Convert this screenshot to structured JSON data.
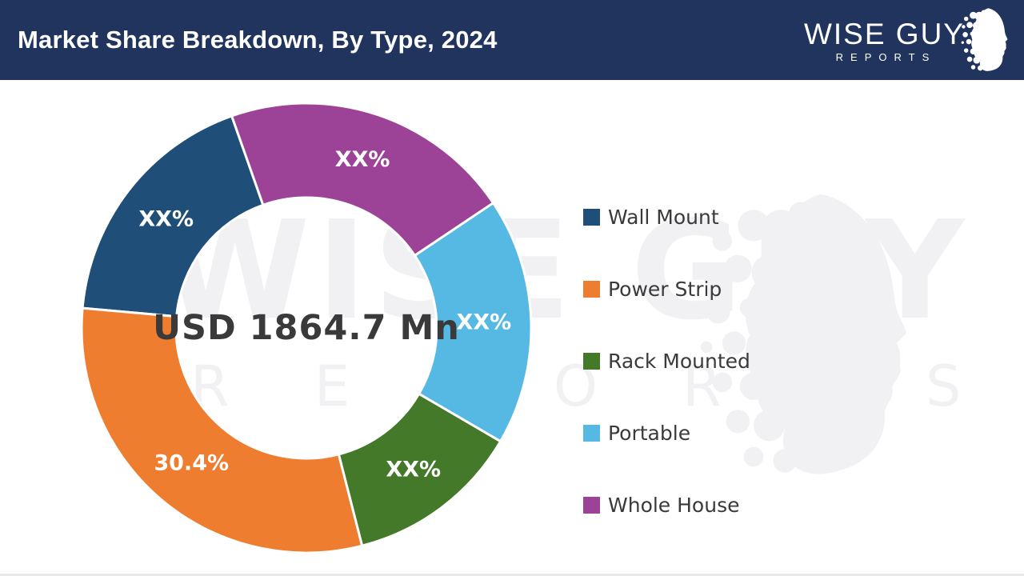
{
  "header": {
    "title": "Market Share Breakdown, By Type, 2024",
    "logo": {
      "name": "WISE GUY",
      "sub": "REPORTS"
    }
  },
  "watermark": {
    "line1": "WISE GUY",
    "line2": "R E P O R T S"
  },
  "chart_data": {
    "type": "donut",
    "title": "Market Share Breakdown, By Type, 2024",
    "center_label": "USD 1864.7 Mn",
    "unit": "USD Mn",
    "total_value_usd_mn": 1864.7,
    "start_angle_cw_deg": 340.6,
    "direction": "counterclockwise",
    "hole_ratio": 0.58,
    "legend_position": "right",
    "grid": false,
    "segments": [
      {
        "label": "Wall Mount",
        "display": "XX%",
        "value_pct_est": 18.2,
        "color": "#1f4e78"
      },
      {
        "label": "Power Strip",
        "display": "30.4%",
        "value_pct_est": 30.4,
        "color": "#ee7d30"
      },
      {
        "label": "Rack Mounted",
        "display": "XX%",
        "value_pct_est": 12.6,
        "color": "#44792a"
      },
      {
        "label": "Portable",
        "display": "XX%",
        "value_pct_est": 17.8,
        "color": "#55b9e4"
      },
      {
        "label": "Whole House",
        "display": "XX%",
        "value_pct_est": 21.0,
        "color": "#9c4398"
      }
    ]
  },
  "colors": {
    "header_bg": "#20345e",
    "header_text": "#ffffff",
    "center_text": "#3a3a3a",
    "legend_text": "#3a3a3a",
    "slice_label": "#ffffff",
    "slice_gap": "#ffffff",
    "watermark": "#f1f1f4",
    "bottom_strip": "#e9e9eb"
  }
}
